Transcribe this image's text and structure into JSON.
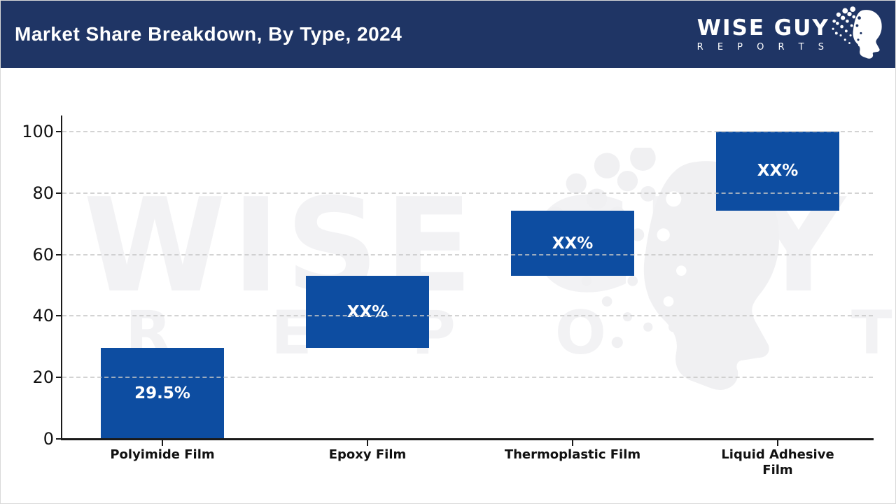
{
  "header": {
    "title": "Market Share Breakdown, By Type, 2024",
    "logo": {
      "line1": "WISE GUY",
      "line2": "R E P O R T S"
    }
  },
  "watermark": {
    "line1": "WISE GUY",
    "line2": "R E P O R T S"
  },
  "chart_data": {
    "type": "bar",
    "variant": "floating-segment-waterfall",
    "title": "Market Share Breakdown, By Type, 2024",
    "categories": [
      "Polyimide Film",
      "Epoxy Film",
      "Thermoplastic Film",
      "Liquid Adhesive Film"
    ],
    "xlabels_display": [
      "Polyimide Film",
      "Epoxy Film",
      "Thermoplastic Film",
      "Liquid Adhesive\nFilm"
    ],
    "segments": [
      {
        "category": "Polyimide Film",
        "start": 0,
        "end": 29.5,
        "label": "29.5%"
      },
      {
        "category": "Epoxy Film",
        "start": 29.5,
        "end": 53,
        "label": "XX%"
      },
      {
        "category": "Thermoplastic Film",
        "start": 53,
        "end": 74.3,
        "label": "XX%"
      },
      {
        "category": "Liquid Adhesive Film",
        "start": 74.3,
        "end": 100,
        "label": "XX%"
      }
    ],
    "ylim": [
      0,
      100
    ],
    "yticks": [
      0,
      20,
      40,
      60,
      80,
      100
    ],
    "grid": "dashed-horizontal",
    "legend": "none",
    "bar_color": "#0d4da1",
    "value_label_color": "#ffffff"
  },
  "colors": {
    "header_bg": "#1f3565",
    "axis": "#1a1a1a",
    "gridline": "#c6c6c6",
    "watermark": "#f2f2f4",
    "page_bg": "#ffffff"
  }
}
